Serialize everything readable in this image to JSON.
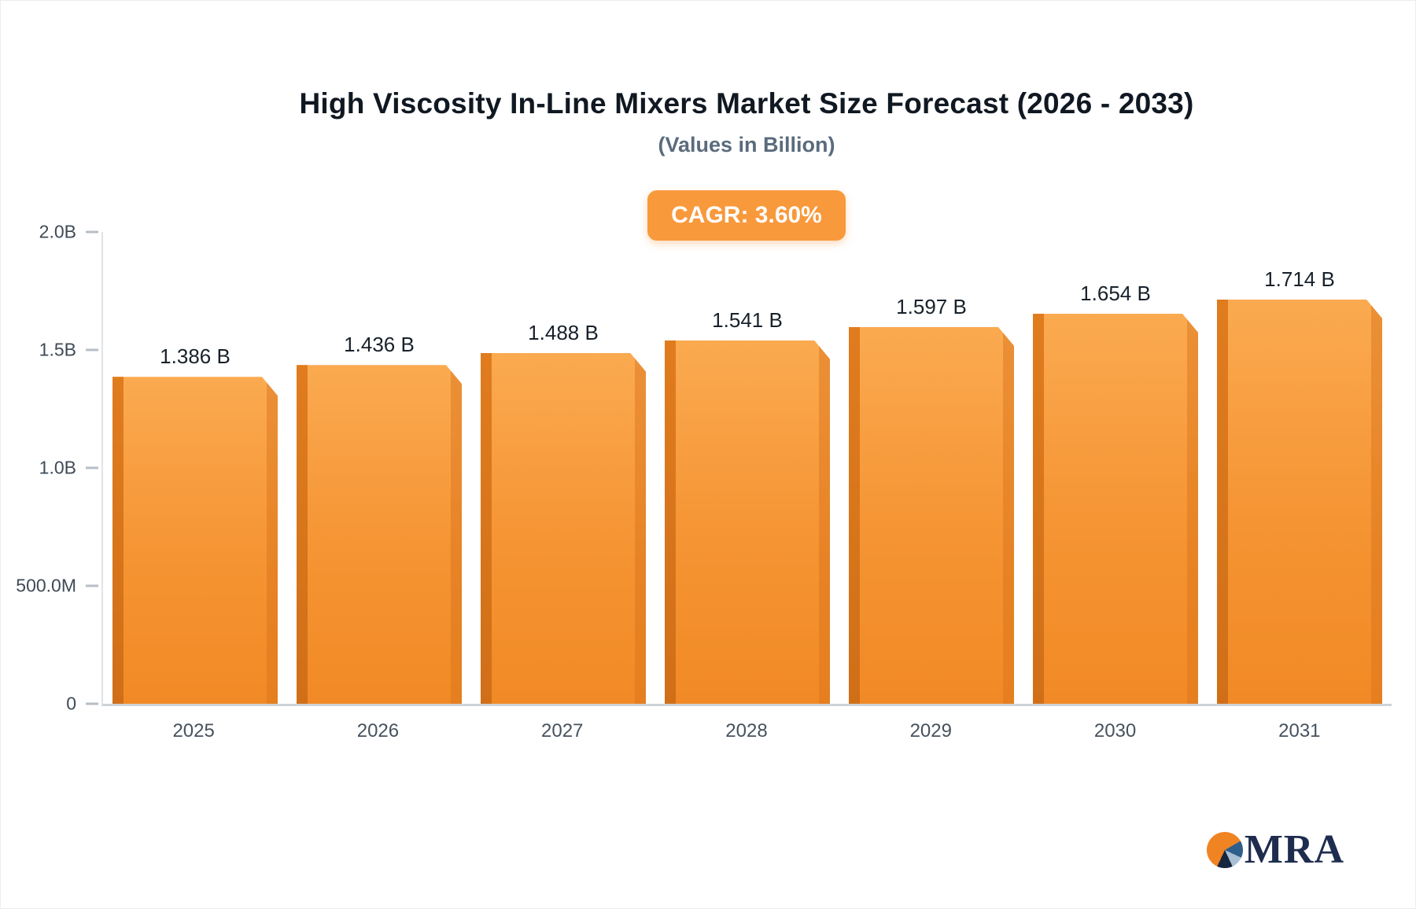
{
  "header": {
    "title": "High Viscosity In-Line Mixers Market Size Forecast (2026 - 2033)",
    "subtitle": "(Values in Billion)"
  },
  "badge": {
    "label": "CAGR: 3.60%"
  },
  "logo": {
    "text": "MRA"
  },
  "colors": {
    "bar": "#f79a3e",
    "bar_side": "#d9741c",
    "badge_bg": "#f8993b",
    "title_text": "#101822",
    "subtitle_text": "#5a6b7d",
    "logo_text": "#1e2c4e"
  },
  "chart_data": {
    "type": "bar",
    "title": "High Viscosity In-Line Mixers Market Size Forecast (2026 - 2033)",
    "subtitle": "(Values in Billion)",
    "categories": [
      "2025",
      "2026",
      "2027",
      "2028",
      "2029",
      "2030",
      "2031"
    ],
    "values": [
      1.386,
      1.436,
      1.488,
      1.541,
      1.597,
      1.654,
      1.714
    ],
    "bar_labels": [
      "1.386 B",
      "1.436 B",
      "1.488 B",
      "1.541 B",
      "1.597 B",
      "1.654 B",
      "1.714 B"
    ],
    "unit": "Billion",
    "annotation": "CAGR: 3.60%",
    "xlabel": "",
    "ylabel": "",
    "ylim": [
      0,
      2.0
    ],
    "y_ticks": [
      {
        "label": "2.0B",
        "value": 2.0
      },
      {
        "label": "1.5B",
        "value": 1.5
      },
      {
        "label": "1.0B",
        "value": 1.0
      },
      {
        "label": "500.0M",
        "value": 0.5
      },
      {
        "label": "0",
        "value": 0
      }
    ],
    "grid": false,
    "legend": "none"
  }
}
